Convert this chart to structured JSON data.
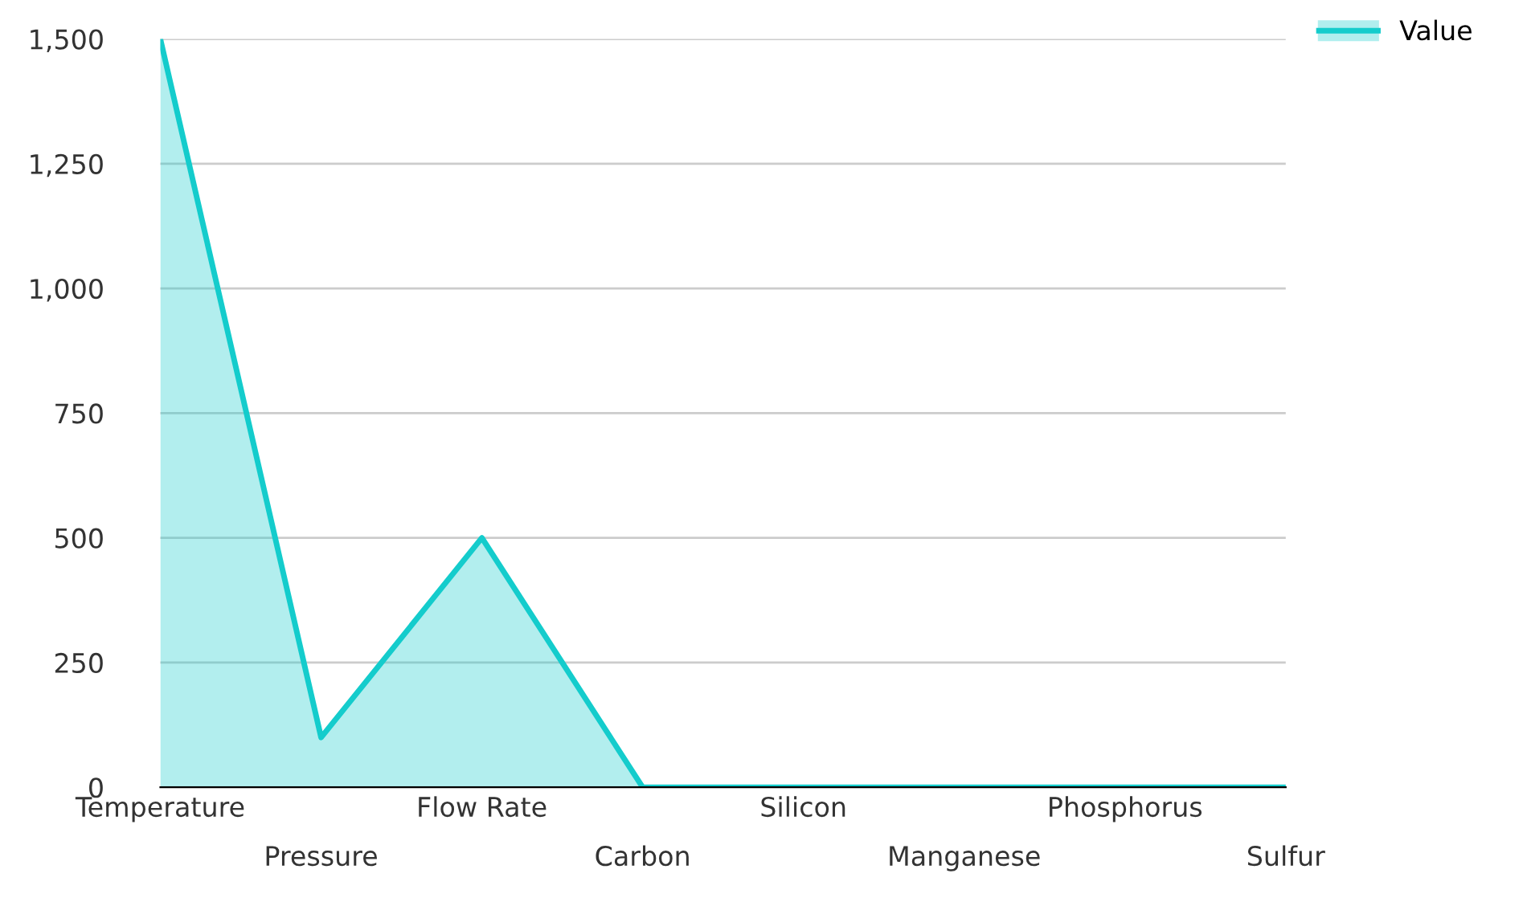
{
  "chart_data": {
    "type": "area",
    "categories": [
      "Temperature",
      "Pressure",
      "Flow Rate",
      "Carbon",
      "Silicon",
      "Manganese",
      "Phosphorus",
      "Sulfur"
    ],
    "series": [
      {
        "name": "Value",
        "color": "#14cccc",
        "values": [
          1500,
          100,
          500,
          0,
          0,
          0,
          0,
          0
        ]
      }
    ],
    "ylim": [
      0,
      1500
    ],
    "yticks": [
      0,
      {
        "value": 250,
        "label": "250"
      },
      {
        "value": 500,
        "label": "500"
      },
      {
        "value": 750,
        "label": "750"
      },
      {
        "value": 1000,
        "label": "1,000"
      },
      {
        "value": 1250,
        "label": "1,250"
      },
      {
        "value": 1500,
        "label": "1,500"
      }
    ],
    "grid": "y",
    "legend": "top right"
  }
}
